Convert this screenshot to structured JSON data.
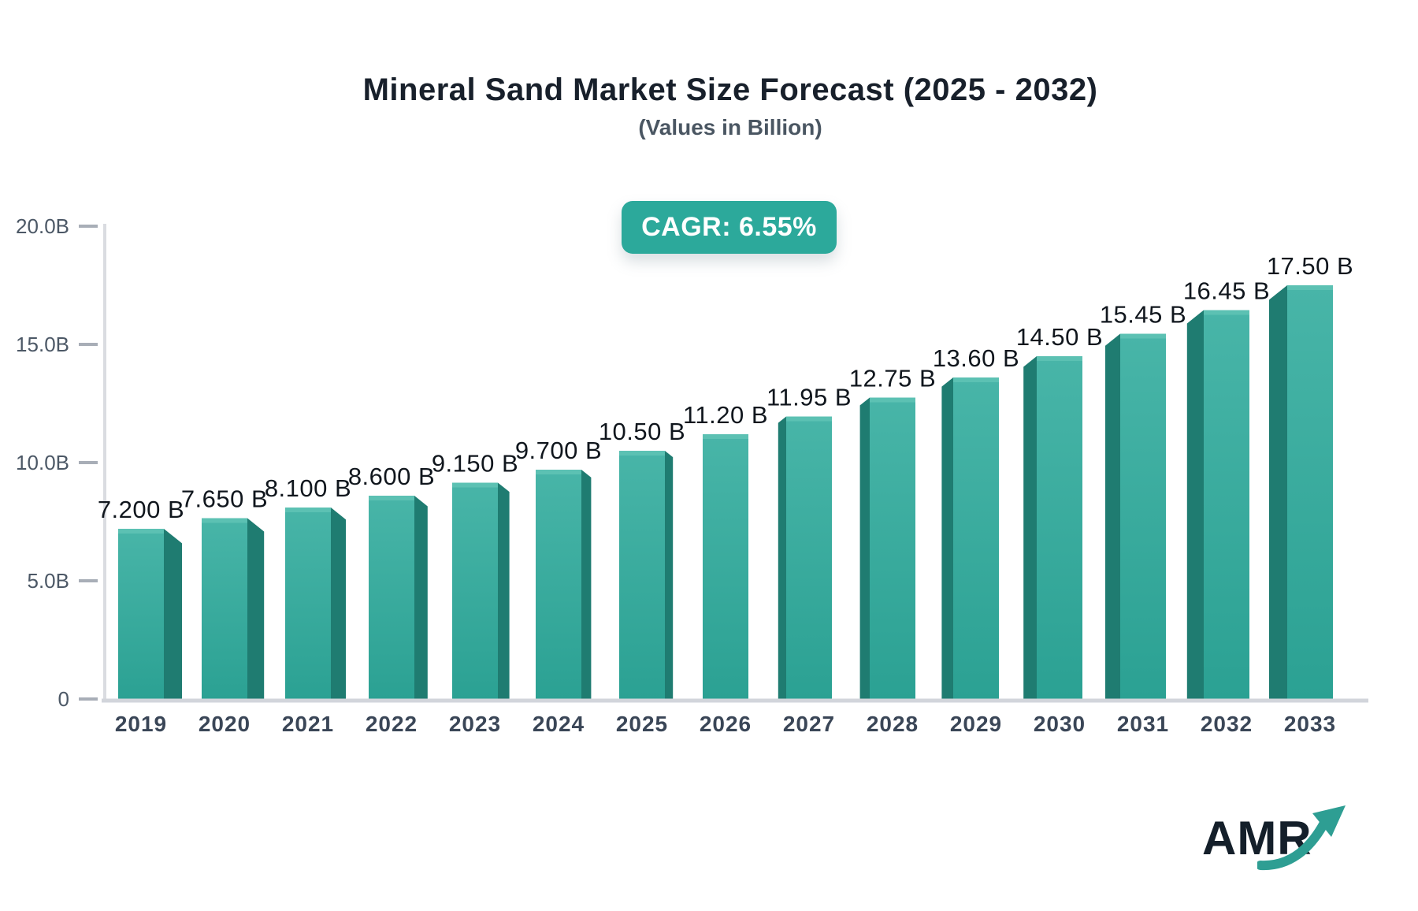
{
  "header": {
    "title": "Mineral Sand Market Size Forecast (2025 - 2032)",
    "subtitle": "(Values in Billion)",
    "cagr_badge": "CAGR: 6.55%"
  },
  "chart_data": {
    "type": "bar",
    "title": "Mineral Sand Market Size Forecast (2025 - 2032)",
    "subtitle": "(Values in Billion)",
    "categories": [
      "2019",
      "2020",
      "2021",
      "2022",
      "2023",
      "2024",
      "2025",
      "2026",
      "2027",
      "2028",
      "2029",
      "2030",
      "2031",
      "2032",
      "2033"
    ],
    "values": [
      7.2,
      7.65,
      8.1,
      8.6,
      9.15,
      9.7,
      10.5,
      11.2,
      11.95,
      12.75,
      13.6,
      14.5,
      15.45,
      16.45,
      17.5
    ],
    "value_labels": [
      "7.200 B",
      "7.650 B",
      "8.100 B",
      "8.600 B",
      "9.150 B",
      "9.700 B",
      "10.50 B",
      "11.20 B",
      "11.95 B",
      "12.75 B",
      "13.60 B",
      "14.50 B",
      "15.45 B",
      "16.45 B",
      "17.50 B"
    ],
    "y_ticks": [
      {
        "label": "0",
        "value": 0
      },
      {
        "label": "5.0B",
        "value": 5
      },
      {
        "label": "10.0B",
        "value": 10
      },
      {
        "label": "15.0B",
        "value": 15
      },
      {
        "label": "20.0B",
        "value": 20
      }
    ],
    "ylim": [
      0,
      20
    ],
    "xlabel": "",
    "ylabel": "",
    "grid": false,
    "legend": "none",
    "annotations": [
      "CAGR: 6.55%"
    ]
  },
  "colors": {
    "bar_face_top": "#48B5A8",
    "bar_face_bottom": "#2BA193",
    "bar_side": "#1F7C71",
    "bar_top_edge": "#5CC1B3",
    "badge_bg": "#2CA99B",
    "badge_text": "#FFFFFF",
    "logo_arrow": "#2E9E93",
    "logo_text": "#141F2A"
  },
  "logo": {
    "text": "AMR"
  }
}
